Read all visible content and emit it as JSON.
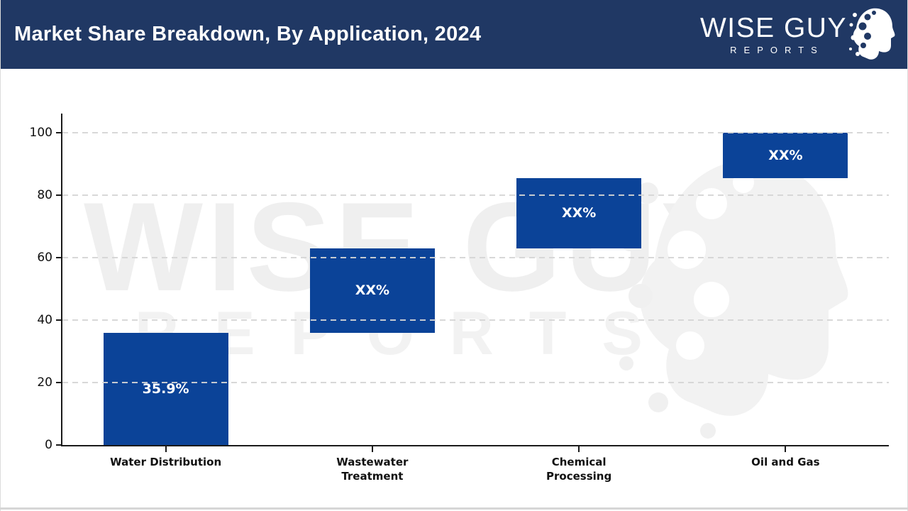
{
  "header": {
    "title": "Market Share Breakdown, By Application, 2024",
    "logo": {
      "wordmark": "WISE GUY",
      "subtitle": "REPORTS"
    }
  },
  "watermark": {
    "wordmark": "WISE GUY",
    "subtitle": "REPORTS"
  },
  "colors": {
    "header_bg": "#203864",
    "bar": "#0b4398",
    "axis": "#1a1a1a",
    "grid": "#d9d9d9",
    "bar_label": "#ffffff",
    "title_text": "#ffffff",
    "tick_text": "#111111",
    "watermark": "#f0f0f0"
  },
  "chart_data": {
    "type": "bar",
    "variant": "waterfall-stacked",
    "title": "Market Share Breakdown, By Application, 2024",
    "categories": [
      "Water Distribution",
      "Wastewater\nTreatment",
      "Chemical\nProcessing",
      "Oil and Gas"
    ],
    "segments": [
      {
        "category": "Water Distribution",
        "start": 0,
        "end": 35.9,
        "label": "35.9%"
      },
      {
        "category": "Wastewater Treatment",
        "start": 35.9,
        "end": 63,
        "label": "XX%"
      },
      {
        "category": "Chemical Processing",
        "start": 63,
        "end": 85.5,
        "label": "XX%"
      },
      {
        "category": "Oil and Gas",
        "start": 85.5,
        "end": 100,
        "label": "XX%"
      }
    ],
    "ylim": [
      0,
      100
    ],
    "yticks": [
      0,
      20,
      40,
      60,
      80,
      100
    ],
    "xlabel": "",
    "ylabel": "",
    "grid": "horizontal-dashed",
    "grid_on_top": true,
    "legend": "none"
  }
}
